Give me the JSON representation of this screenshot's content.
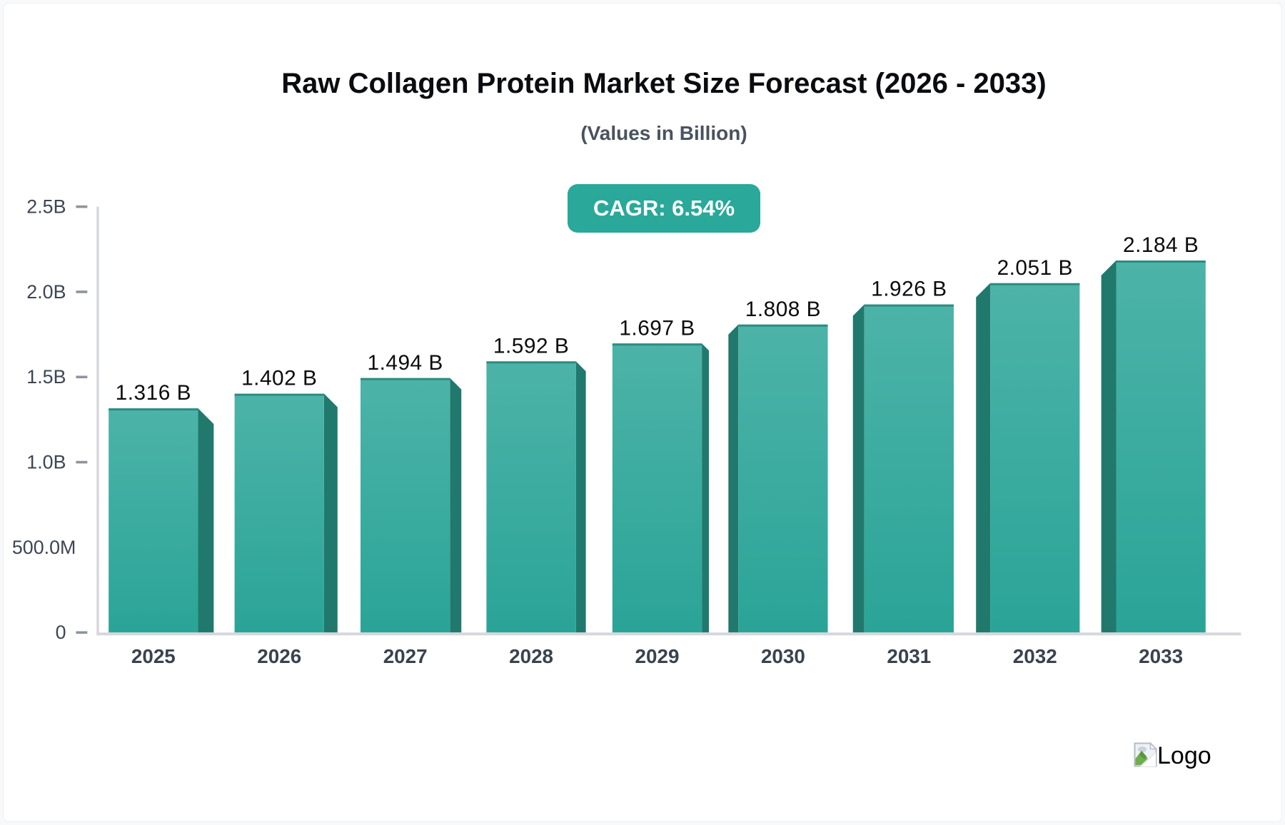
{
  "header": {
    "title": "Raw Collagen Protein Market Size Forecast (2026 - 2033)",
    "subtitle": "(Values in Billion)",
    "cagr_label": "CAGR: 6.54%"
  },
  "footer": {
    "logo_alt": "Logo"
  },
  "chart_data": {
    "type": "bar",
    "title": "Raw Collagen Protein Market Size Forecast (2026 - 2033)",
    "subtitle": "(Values in Billion)",
    "cagr": "CAGR: 6.54%",
    "categories": [
      "2025",
      "2026",
      "2027",
      "2028",
      "2029",
      "2030",
      "2031",
      "2032",
      "2033"
    ],
    "values": [
      1.316,
      1.402,
      1.494,
      1.592,
      1.697,
      1.808,
      1.926,
      2.051,
      2.184
    ],
    "unit": "B",
    "value_label_suffix": " B",
    "ylim": [
      0,
      2.5
    ],
    "yticks": [
      {
        "value": 0,
        "label": "0",
        "dash": true
      },
      {
        "value": 0.5,
        "label": "500.0M",
        "dash": false
      },
      {
        "value": 1.0,
        "label": "1.0B",
        "dash": true
      },
      {
        "value": 1.5,
        "label": "1.5B",
        "dash": true
      },
      {
        "value": 2.0,
        "label": "2.0B",
        "dash": true
      },
      {
        "value": 2.5,
        "label": "2.5B",
        "dash": true
      }
    ],
    "grid": false,
    "legend": false,
    "colors": {
      "bar_face_top": "#4db3a8",
      "bar_face_bottom": "#2aa497",
      "bar_side": "#20796c",
      "bar_top_edge": "#2b8c80",
      "badge_bg": "#2aa899",
      "badge_text": "#ffffff",
      "axis_line": "#d5d7dc",
      "tick_dash": "#8d949d",
      "ytick_text": "#3d4653",
      "xtick_text": "#39434f",
      "value_label": "#0b0c0e",
      "title_text": "#0a0c10",
      "subtitle_text": "#49525f"
    }
  }
}
